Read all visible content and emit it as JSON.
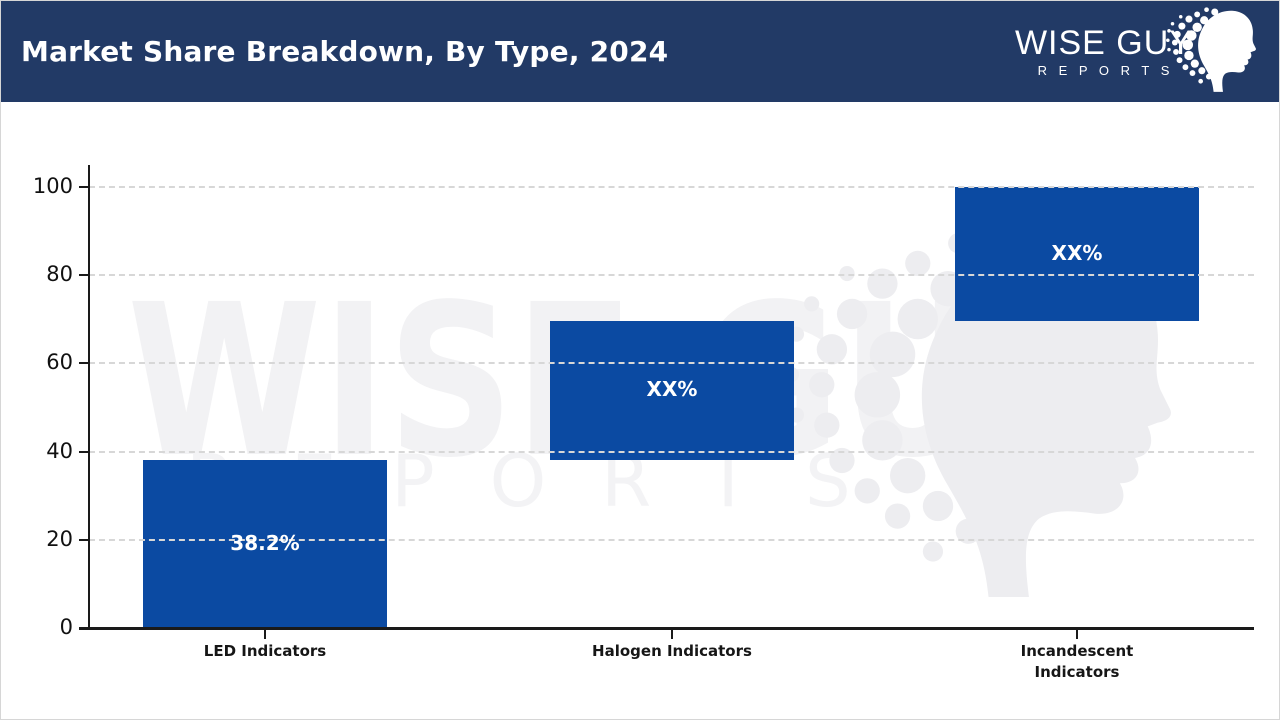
{
  "header": {
    "title": "Market Share Breakdown, By Type, 2024",
    "bg_color": "#223a66",
    "logo": {
      "line1": "WISE GUY",
      "line2": "R E P O R T S"
    }
  },
  "watermark": {
    "line1": "WISE GUY",
    "line2": "R E P O R T S"
  },
  "chart_data": {
    "type": "bar",
    "subtype": "waterfall",
    "title": "Market Share Breakdown, By Type, 2024",
    "categories": [
      "LED Indicators",
      "Halogen Indicators",
      "Incandescent Indicators"
    ],
    "segments": [
      {
        "category": "LED Indicators",
        "start": 0,
        "end": 38.2,
        "label": "38.2%"
      },
      {
        "category": "Halogen Indicators",
        "start": 38.2,
        "end": 69.6,
        "label": "XX%"
      },
      {
        "category": "Incandescent Indicators",
        "start": 69.6,
        "end": 100,
        "label": "XX%"
      }
    ],
    "xlabel": "",
    "ylabel": "",
    "ylim": [
      0,
      100
    ],
    "yticks": [
      0,
      20,
      40,
      60,
      80,
      100
    ],
    "grid": "horizontal dashed",
    "legend": "none",
    "bar_color": "#0b4aa2",
    "bar_label_color": "#ffffff",
    "grid_color": "#d7d7d7",
    "axis_color": "#1a1a1a"
  }
}
